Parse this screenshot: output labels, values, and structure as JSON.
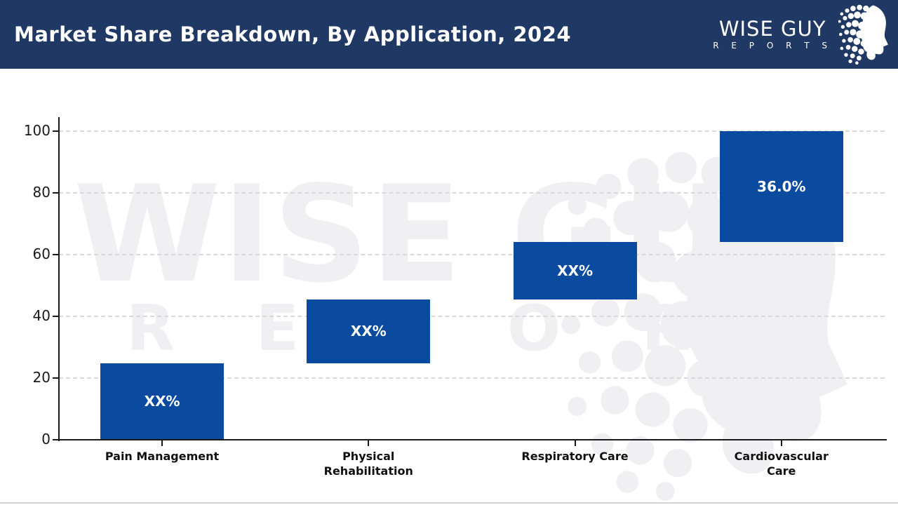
{
  "header": {
    "title": "Market Share Breakdown, By Application, 2024",
    "logo": {
      "wise_guy": "WISE GUY",
      "reports": "R E P O R T S"
    },
    "bg_color": "#1f3864"
  },
  "watermark": {
    "wise_guy": "WISE GUY",
    "reports": "R E P O R T S"
  },
  "chart_data": {
    "type": "bar",
    "subtype": "waterfall",
    "title": "Market Share Breakdown, By Application, 2024",
    "xlabel": "",
    "ylabel": "",
    "categories": [
      [
        "Pain Management"
      ],
      [
        "Physical",
        "Rehabilitation"
      ],
      [
        "Respiratory Care"
      ],
      [
        "Cardiovascular",
        "Care"
      ]
    ],
    "segments": [
      {
        "label": "XX%",
        "start": 0,
        "end": 24.8
      },
      {
        "label": "XX%",
        "start": 24.8,
        "end": 45.5
      },
      {
        "label": "XX%",
        "start": 45.5,
        "end": 64.0
      },
      {
        "label": "36.0%",
        "start": 64.0,
        "end": 100.0
      }
    ],
    "y_ticks": [
      0,
      20,
      40,
      60,
      80,
      100
    ],
    "ylim": [
      0,
      100
    ],
    "grid": true,
    "legend": false,
    "bar_color": "#0a4a9f",
    "grid_color": "#d9d9d9",
    "axis_color": "#1a1a1a",
    "watermark_color": "#f0f0f2"
  }
}
